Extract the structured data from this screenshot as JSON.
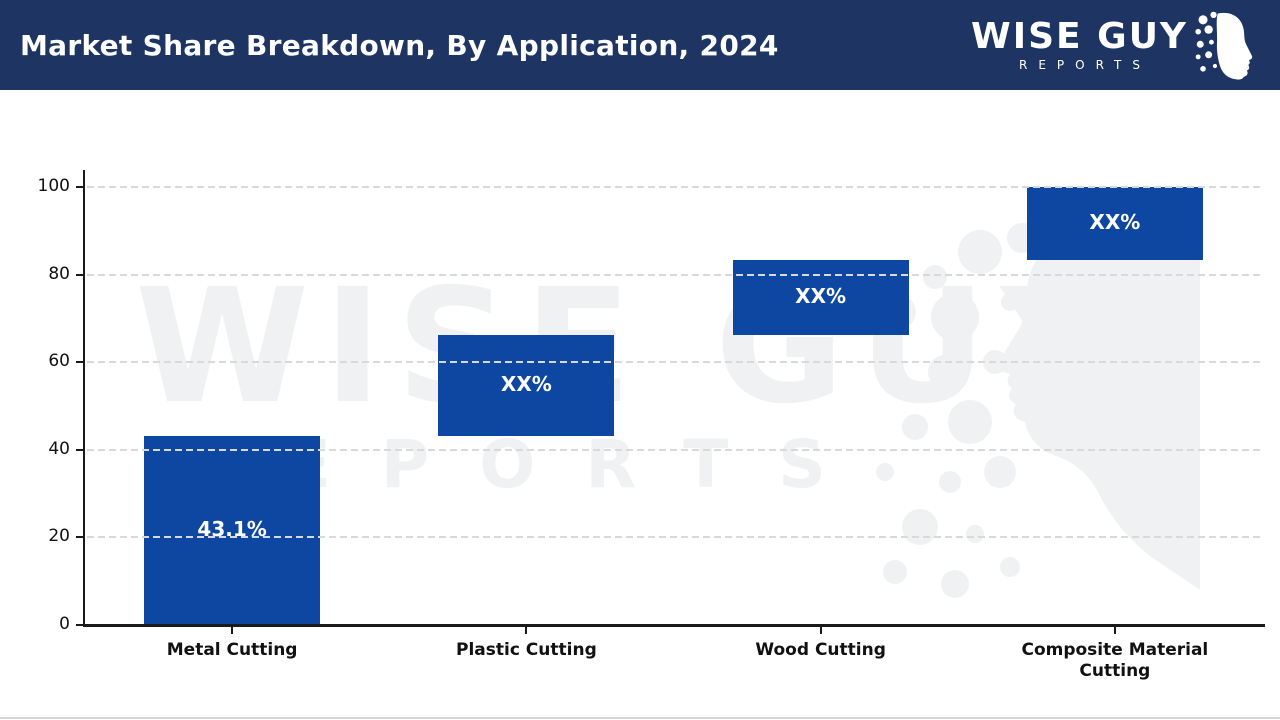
{
  "header": {
    "title": "Market Share Breakdown, By Application, 2024",
    "bg_color": "#1e3564",
    "logo": {
      "line1": "WISE GUY",
      "line2": "REPORTS"
    }
  },
  "watermark": {
    "line1": "WISE GUY",
    "line2": "REPORTS"
  },
  "chart_data": {
    "type": "bar",
    "variant": "waterfall",
    "title": "Market Share Breakdown, By Application, 2024",
    "categories": [
      "Metal Cutting",
      "Plastic Cutting",
      "Wood Cutting",
      "Composite Material Cutting"
    ],
    "bars": [
      {
        "category": "Metal Cutting",
        "start": 0,
        "end": 43.1,
        "label": "43.1%"
      },
      {
        "category": "Plastic Cutting",
        "start": 43.1,
        "end": 66.2,
        "label": "XX%"
      },
      {
        "category": "Wood Cutting",
        "start": 66.2,
        "end": 83.3,
        "label": "XX%"
      },
      {
        "category": "Composite Material Cutting",
        "start": 83.3,
        "end": 100,
        "label": "XX%"
      }
    ],
    "ylim": [
      0,
      105
    ],
    "yticks": [
      0,
      20,
      40,
      60,
      80,
      100
    ],
    "xlabel": "",
    "ylabel": "",
    "bar_color": "#0d47a1",
    "grid": {
      "axis": "y",
      "style": "dashed",
      "color": "#d9d9d9",
      "on_top": true
    },
    "legend": null
  }
}
